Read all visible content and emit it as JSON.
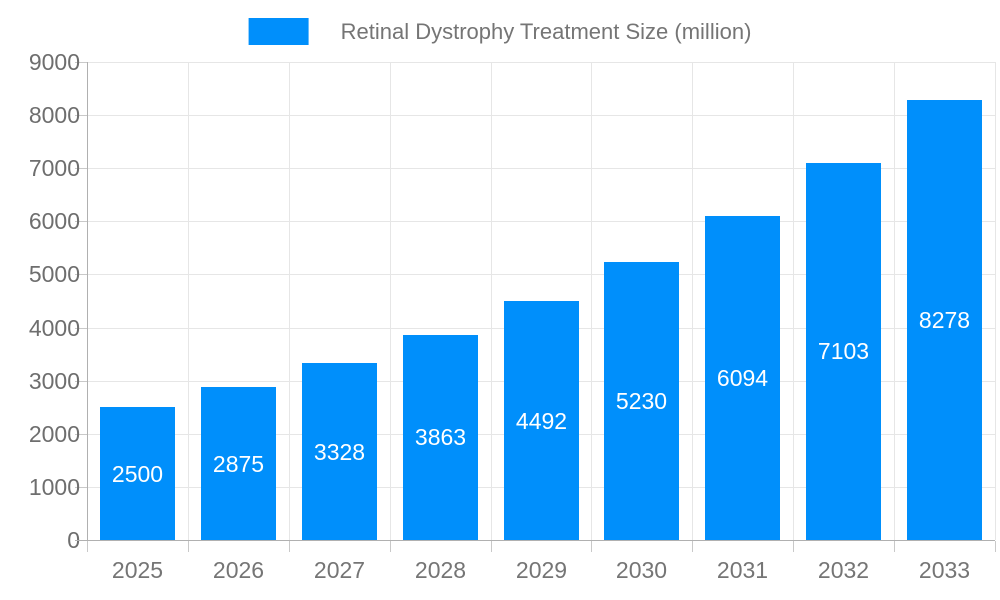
{
  "legend": {
    "label": "Retinal Dystrophy Treatment Size (million)"
  },
  "chart_data": {
    "type": "bar",
    "title": "Retinal Dystrophy Treatment Size (million)",
    "categories": [
      "2025",
      "2026",
      "2027",
      "2028",
      "2029",
      "2030",
      "2031",
      "2032",
      "2033"
    ],
    "values": [
      2500,
      2875,
      3328,
      3863,
      4492,
      5230,
      6094,
      7103,
      8278
    ],
    "xlabel": "",
    "ylabel": "",
    "ylim": [
      0,
      9000
    ],
    "ytick_step": 1000,
    "ytick_labels": [
      "0",
      "1000",
      "2000",
      "3000",
      "4000",
      "5000",
      "6000",
      "7000",
      "8000",
      "9000"
    ],
    "grid": "both",
    "legend_position": "top",
    "value_labels": "centered-inside-bars",
    "colors": {
      "bar": "#008FFB",
      "value_label": "#ffffff",
      "axis_label": "#6e6e6e",
      "legend_label": "#757575",
      "gridline": "#e6e6e6",
      "axis_line": "#b0b0b0",
      "background": "#ffffff"
    }
  }
}
